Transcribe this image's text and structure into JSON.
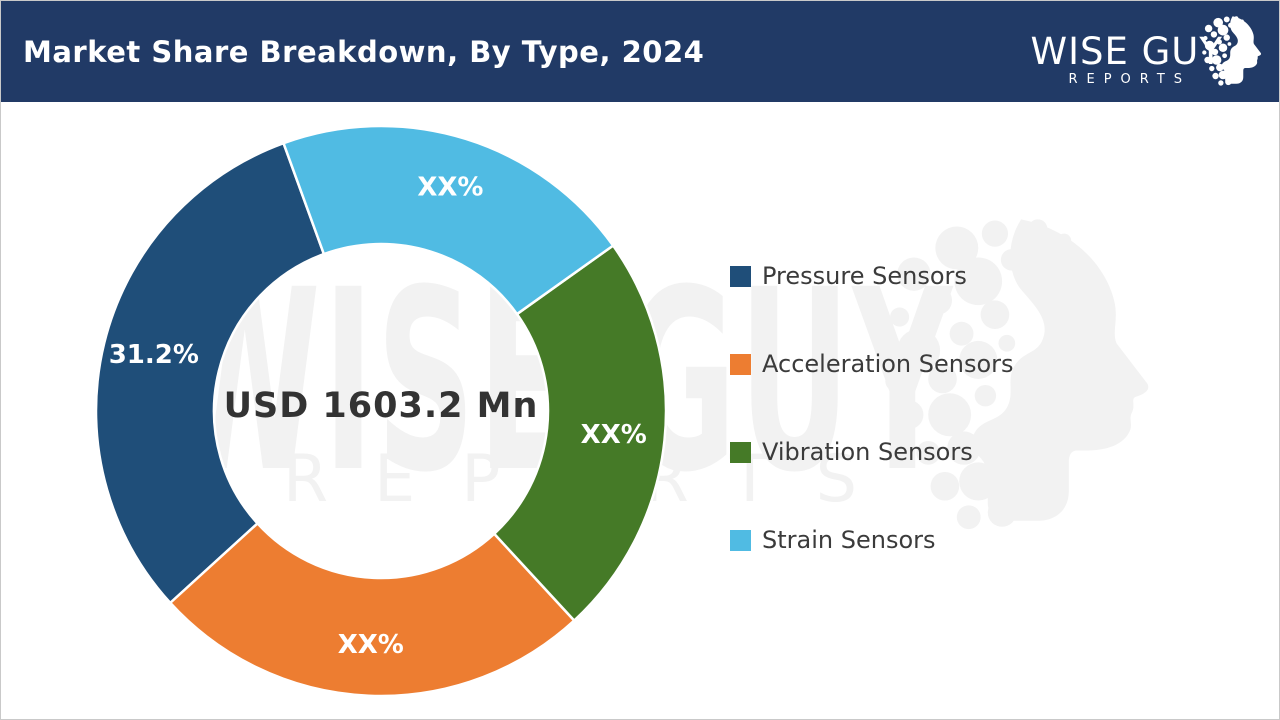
{
  "header": {
    "title": "Market Share Breakdown, By Type, 2024",
    "brand": {
      "line1": "WISE GUY",
      "line2": "REPORTS"
    }
  },
  "watermark": {
    "line1": "WISE GUY",
    "line2": "REPORTS"
  },
  "chart_data": {
    "type": "pie",
    "subtype": "donut",
    "title": "Market Share Breakdown, By Type, 2024",
    "center_label": "USD 1603.2 Mn",
    "start_angle": 110,
    "counterclockwise": true,
    "donut_hole_ratio": 0.586,
    "legend_position": "right",
    "series": [
      {
        "name": "Pressure Sensors",
        "value": 31.2,
        "label": "31.2%",
        "color": "#1F4E79"
      },
      {
        "name": "Acceleration Sensors",
        "value": 25.1,
        "label": "XX%",
        "color": "#ED7D31"
      },
      {
        "name": "Vibration Sensors",
        "value": 23.0,
        "label": "XX%",
        "color": "#457A27"
      },
      {
        "name": "Strain Sensors",
        "value": 20.7,
        "label": "XX%",
        "color": "#50BBE3"
      }
    ]
  },
  "colors": {
    "header_bg": "#213A66",
    "slice_label": "#FFFFFF",
    "center_label": "#333333",
    "legend_text": "#3B3B3B",
    "watermark": "#F2F2F2",
    "slice_stroke": "#FFFFFF"
  }
}
